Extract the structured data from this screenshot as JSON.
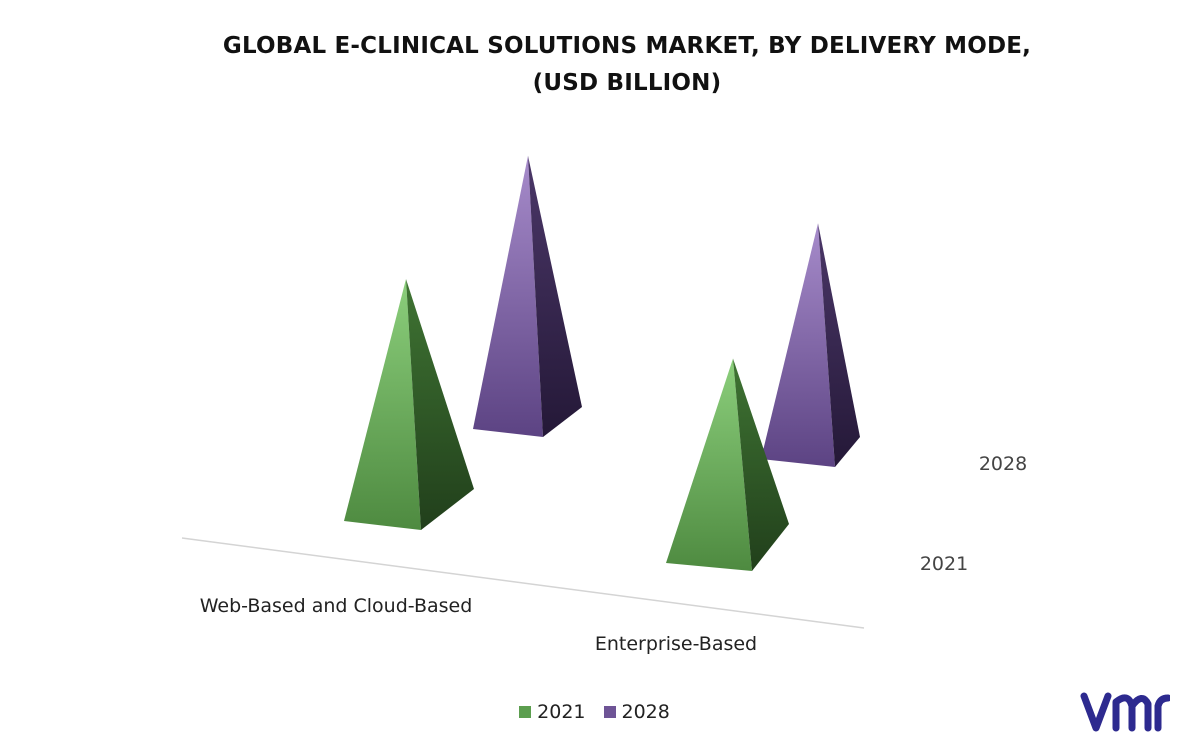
{
  "chart_data": {
    "type": "bar",
    "style": "3d-pyramid",
    "title_lines": [
      "GLOBAL E-CLINICAL SOLUTIONS MARKET, BY DELIVERY MODE,",
      "(USD BILLION)"
    ],
    "categories": [
      "Web-Based and Cloud-Based",
      "Enterprise-Based"
    ],
    "series": [
      {
        "name": "2021",
        "values": [
          4.0,
          3.4
        ],
        "color": "#5c9e4f"
      },
      {
        "name": "2028",
        "values": [
          4.5,
          3.9
        ],
        "color": "#6e5496"
      }
    ],
    "depth_labels": [
      "2028",
      "2021"
    ],
    "legend_position": "bottom",
    "grid": false
  },
  "brand": {
    "logo_name": "vmr-logo",
    "color": "#2d2a8f"
  }
}
